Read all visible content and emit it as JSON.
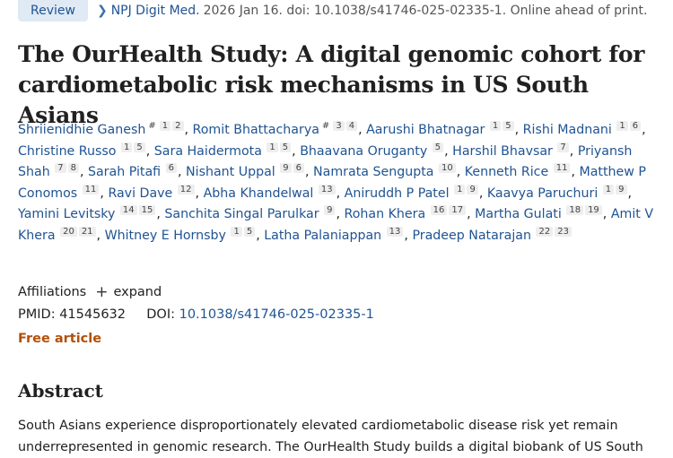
{
  "header": {
    "badge": "Review",
    "journal": "NPJ Digit Med.",
    "citation": "2026 Jan 16. doi: 10.1038/s41746-025-02335-1. Online ahead of print."
  },
  "title": "The OurHealth Study: A digital genomic cohort for cardiometabolic risk mechanisms in US South Asians",
  "authors": [
    {
      "name": "Shriienidhie Ganesh",
      "eq": "#",
      "affs": [
        "1",
        "2"
      ]
    },
    {
      "name": "Romit Bhattacharya",
      "eq": "#",
      "affs": [
        "3",
        "4"
      ]
    },
    {
      "name": "Aarushi Bhatnagar",
      "affs": [
        "1",
        "5"
      ]
    },
    {
      "name": "Rishi Madnani",
      "affs": [
        "1",
        "6"
      ]
    },
    {
      "name": "Christine Russo",
      "affs": [
        "1",
        "5"
      ]
    },
    {
      "name": "Sara Haidermota",
      "affs": [
        "1",
        "5"
      ]
    },
    {
      "name": "Bhaavana Oruganty",
      "affs": [
        "5"
      ]
    },
    {
      "name": "Harshil Bhavsar",
      "affs": [
        "7"
      ]
    },
    {
      "name": "Priyansh Shah",
      "affs": [
        "7",
        "8"
      ]
    },
    {
      "name": "Sarah Pitafi",
      "affs": [
        "6"
      ]
    },
    {
      "name": "Nishant Uppal",
      "affs": [
        "9",
        "6"
      ]
    },
    {
      "name": "Namrata Sengupta",
      "affs": [
        "10"
      ]
    },
    {
      "name": "Kenneth Rice",
      "affs": [
        "11"
      ]
    },
    {
      "name": "Matthew P Conomos",
      "affs": [
        "11"
      ]
    },
    {
      "name": "Ravi Dave",
      "affs": [
        "12"
      ]
    },
    {
      "name": "Abha Khandelwal",
      "affs": [
        "13"
      ]
    },
    {
      "name": "Aniruddh P Patel",
      "affs": [
        "1",
        "9"
      ]
    },
    {
      "name": "Kaavya Paruchuri",
      "affs": [
        "1",
        "9"
      ]
    },
    {
      "name": "Yamini Levitsky",
      "affs": [
        "14",
        "15"
      ]
    },
    {
      "name": "Sanchita Singal Parulkar",
      "affs": [
        "9"
      ]
    },
    {
      "name": "Rohan Khera",
      "affs": [
        "16",
        "17"
      ]
    },
    {
      "name": "Martha Gulati",
      "affs": [
        "18",
        "19"
      ]
    },
    {
      "name": "Amit V Khera",
      "affs": [
        "20",
        "21"
      ]
    },
    {
      "name": "Whitney E Hornsby",
      "affs": [
        "1",
        "5"
      ]
    },
    {
      "name": "Latha Palaniappan",
      "affs": [
        "13"
      ]
    },
    {
      "name": "Pradeep Natarajan",
      "affs": [
        "22",
        "23"
      ]
    }
  ],
  "affiliations": {
    "label": "Affiliations",
    "expand_label": "expand"
  },
  "ids": {
    "pmid_label": "PMID:",
    "pmid": "41545632",
    "doi_label": "DOI:",
    "doi": "10.1038/s41746-025-02335-1"
  },
  "free_article": "Free article",
  "abstract": {
    "heading": "Abstract",
    "text": "South Asians experience disproportionately elevated cardiometabolic disease risk yet remain underrepresented in genomic research. The OurHealth Study builds a digital biobank of US South"
  },
  "icons": {
    "breadcrumb": "chevron-right-icon",
    "expand": "plus-icon"
  }
}
